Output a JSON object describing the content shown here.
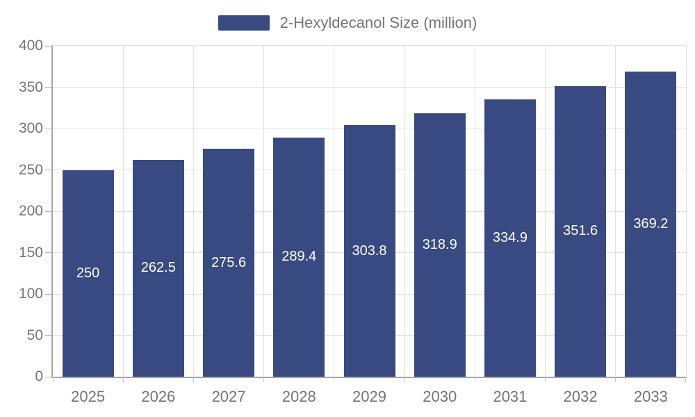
{
  "legend": {
    "label": "2-Hexyldecanol Size (million)"
  },
  "colors": {
    "bar": "#394a82",
    "axis_line": "#a6a6a6",
    "gridline": "#e0e0e0",
    "tick": "#c4c4c4",
    "axis_text": "#757575",
    "value_label_text": "#ffffff",
    "background": "#ffffff"
  },
  "chart_data": {
    "type": "bar",
    "title": "2-Hexyldecanol Size (million)",
    "categories": [
      "2025",
      "2026",
      "2027",
      "2028",
      "2029",
      "2030",
      "2031",
      "2032",
      "2033"
    ],
    "values": [
      250,
      262.5,
      275.6,
      289.4,
      303.8,
      318.9,
      334.9,
      351.6,
      369.2
    ],
    "value_labels": [
      "250",
      "262.5",
      "275.6",
      "289.4",
      "303.8",
      "318.9",
      "334.9",
      "351.6",
      "369.2"
    ],
    "series": [
      {
        "name": "2-Hexyldecanol Size (million)",
        "values": [
          250,
          262.5,
          275.6,
          289.4,
          303.8,
          318.9,
          334.9,
          351.6,
          369.2
        ]
      }
    ],
    "xlabel": "",
    "ylabel": "",
    "ylim": [
      0,
      400
    ],
    "yticks": [
      0,
      50,
      100,
      150,
      200,
      250,
      300,
      350,
      400
    ],
    "grid": true,
    "legend_position": "top-center",
    "bar_labels_inside": true
  }
}
